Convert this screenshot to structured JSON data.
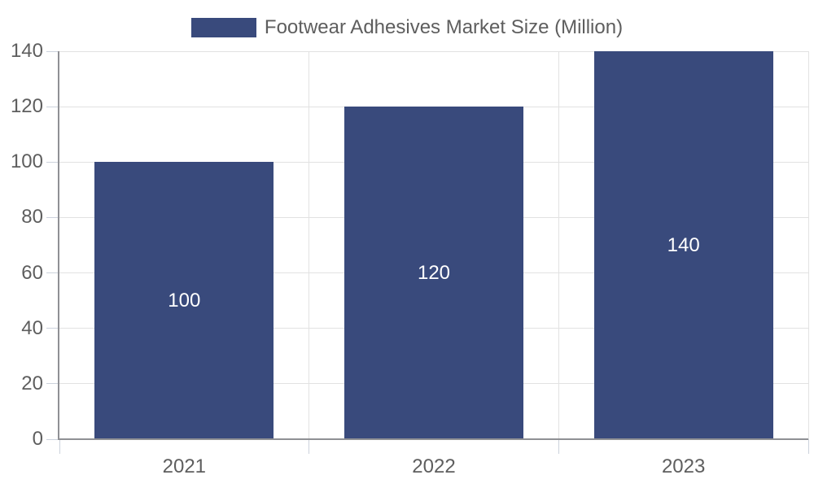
{
  "colors": {
    "bar": "#394a7c",
    "bar_label": "#ffffff",
    "text": "#5e5e5e",
    "grid": "#e2e2e2",
    "tick": "#ccd2dc",
    "axis": "#8f9094",
    "background": "#ffffff"
  },
  "legend": {
    "label": "Footwear Adhesives Market Size (Million)"
  },
  "chart_data": {
    "type": "bar",
    "title": "Footwear Adhesives Market Size (Million)",
    "categories": [
      "2021",
      "2022",
      "2023"
    ],
    "values": [
      100,
      120,
      140
    ],
    "series": [
      {
        "name": "Footwear Adhesives Market Size (Million)",
        "values": [
          100,
          120,
          140
        ]
      }
    ],
    "yticks": [
      0,
      20,
      40,
      60,
      80,
      100,
      120,
      140
    ],
    "ylim": [
      0,
      140
    ],
    "xlabel": "",
    "ylabel": "",
    "grid": true,
    "legend_position": "top",
    "bar_labels_inside": true
  }
}
